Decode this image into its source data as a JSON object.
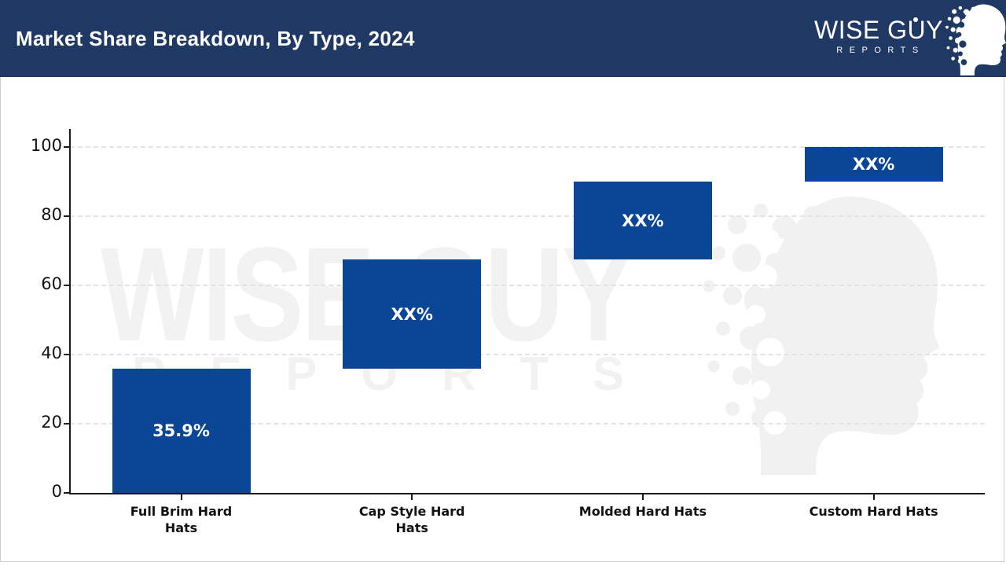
{
  "header": {
    "title": "Market Share Breakdown, By Type, 2024",
    "logo": {
      "line1": "WISE GUY",
      "line2": "REPORTS"
    }
  },
  "watermark": {
    "line1": "WISE GUY",
    "line2": "REPORTS"
  },
  "colors": {
    "header_bg": "#1f3864",
    "bar": "#0b4596",
    "bar_label": "#ffffff",
    "gridline": "#e3e3e3",
    "axis": "#1a1a1a",
    "watermark": "#f2f2f3"
  },
  "chart_data": {
    "type": "bar",
    "subtype": "waterfall",
    "title": "Market Share Breakdown, By Type, 2024",
    "categories": [
      "Full Brim Hard\nHats",
      "Cap Style Hard\nHats",
      "Molded Hard Hats",
      "Custom Hard Hats"
    ],
    "segments": [
      {
        "category": "Full Brim Hard Hats",
        "start": 0,
        "end": 35.9,
        "label": "35.9%"
      },
      {
        "category": "Cap Style Hard Hats",
        "start": 35.9,
        "end": 67.5,
        "label": "XX%"
      },
      {
        "category": "Molded Hard Hats",
        "start": 67.5,
        "end": 90,
        "label": "XX%"
      },
      {
        "category": "Custom Hard Hats",
        "start": 90,
        "end": 100,
        "label": "XX%"
      }
    ],
    "yticks": [
      0,
      20,
      40,
      60,
      80,
      100
    ],
    "ylim": [
      0,
      105
    ],
    "grid": "horizontal dashed",
    "legend": "none",
    "bar_color": "#0b4596",
    "value_labels_position": "center of each bar"
  }
}
